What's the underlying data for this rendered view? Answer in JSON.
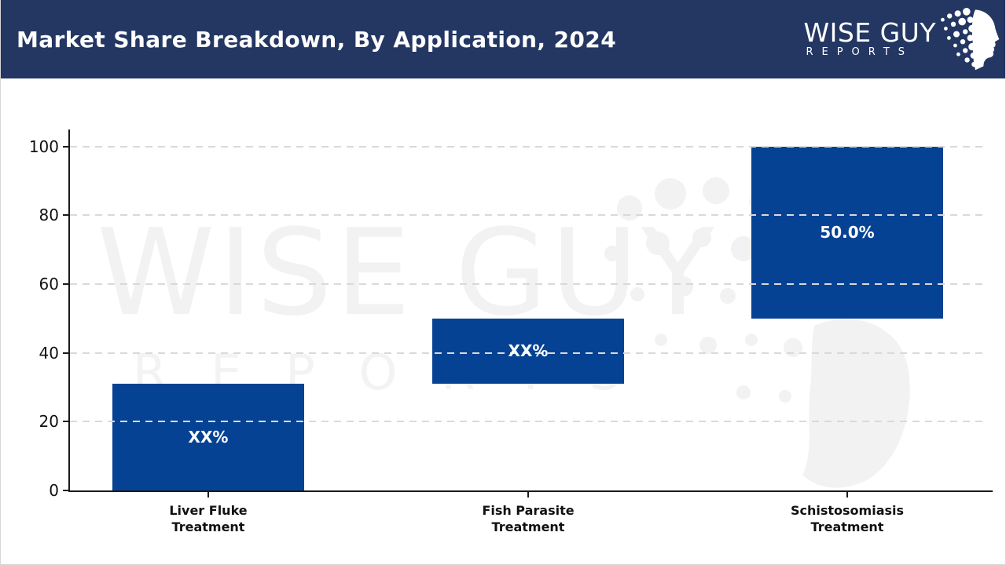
{
  "header": {
    "title": "Market Share Breakdown, By Application, 2024",
    "logo_line1": "WISE GUY",
    "logo_line2": "REPORTS",
    "background_color": "#243763"
  },
  "watermark": {
    "line1": "WISE GUY",
    "line2": "REPORTS"
  },
  "chart_data": {
    "type": "bar",
    "subtype": "floating-segment-waterfall",
    "title": "Market Share Breakdown, By Application, 2024",
    "categories": [
      "Liver Fluke Treatment",
      "Fish Parasite Treatment",
      "Schistosomiasis Treatment"
    ],
    "category_lines": [
      [
        "Liver Fluke",
        "Treatment"
      ],
      [
        "Fish Parasite",
        "Treatment"
      ],
      [
        "Schistosomiasis",
        "Treatment"
      ]
    ],
    "bars": [
      {
        "category": "Liver Fluke Treatment",
        "start": 0,
        "end": 31,
        "label": "XX%"
      },
      {
        "category": "Fish Parasite Treatment",
        "start": 31,
        "end": 50,
        "label": "XX%"
      },
      {
        "category": "Schistosomiasis Treatment",
        "start": 50,
        "end": 100,
        "label": "50.0%"
      }
    ],
    "xlabel": "",
    "ylabel": "",
    "ylim": [
      0,
      100
    ],
    "yticks": [
      0,
      20,
      40,
      60,
      80,
      100
    ],
    "grid": {
      "horizontal": true,
      "style": "dashed",
      "drawn_above_bars": true
    },
    "legend": "none",
    "bar_color": "#064293",
    "bar_label_color": "#ffffff"
  }
}
